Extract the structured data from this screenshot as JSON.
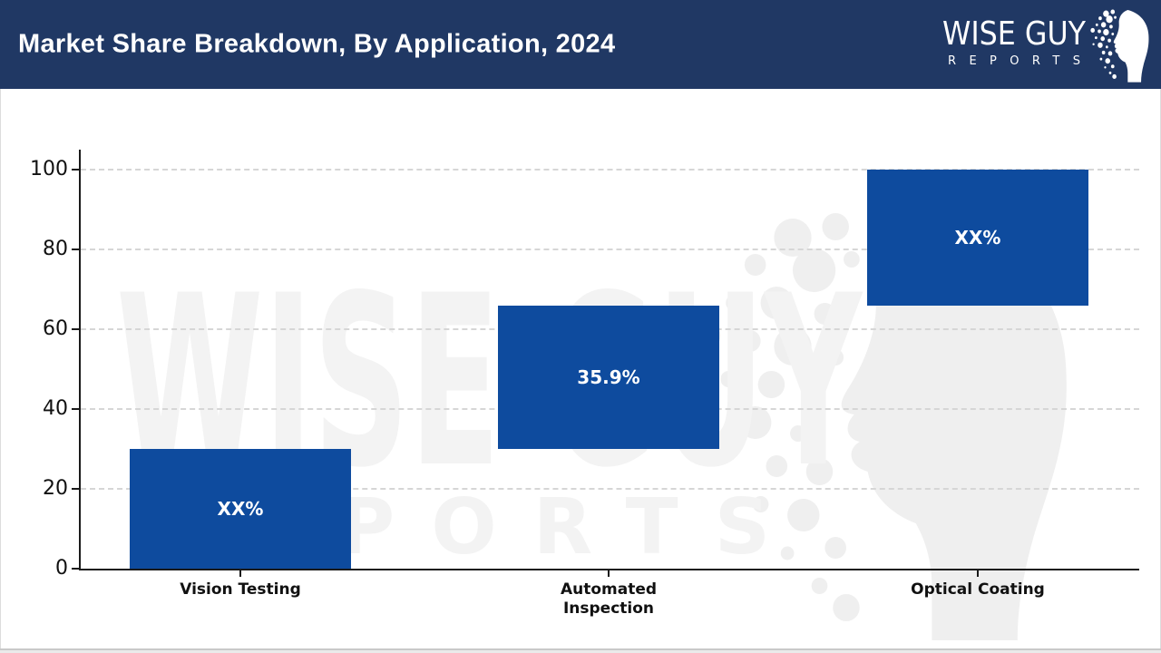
{
  "header": {
    "title": "Market Share Breakdown, By Application, 2024",
    "bg_color": "#203864",
    "logo": {
      "line1": "WISE GUY",
      "line2": "REPORTS"
    }
  },
  "watermark": {
    "line1": "WISE GUY",
    "line2": "REPORTS"
  },
  "chart_data": {
    "type": "bar",
    "subtype": "floating-waterfall",
    "title": "Market Share Breakdown, By Application, 2024",
    "categories": [
      "Vision Testing",
      "Automated\nInspection",
      "Optical Coating"
    ],
    "segments": [
      {
        "category": "Vision Testing",
        "start": 0,
        "end": 30,
        "label": "XX%"
      },
      {
        "category": "Automated\nInspection",
        "start": 30,
        "end": 65.9,
        "label": "35.9%"
      },
      {
        "category": "Optical Coating",
        "start": 65.9,
        "end": 100,
        "label": "XX%"
      }
    ],
    "ylabel": "",
    "xlabel": "",
    "ylim": [
      0,
      100
    ],
    "yticks": [
      0,
      20,
      40,
      60,
      80,
      100
    ],
    "grid": "horizontal-dashed",
    "legend": "none",
    "bar_color": "#0e4b9e",
    "bar_label_color": "#ffffff",
    "axis_color": "#1a1a1a",
    "gridline_color": "#d6d6d6"
  }
}
